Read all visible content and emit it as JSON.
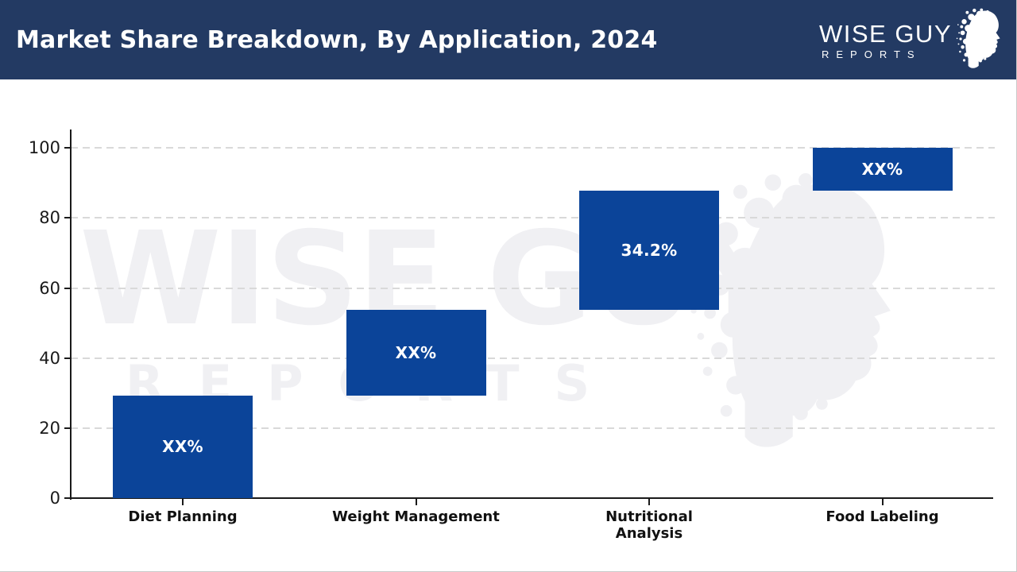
{
  "header": {
    "title": "Market Share Breakdown, By Application, 2024",
    "logo": {
      "line1": "WISE GUY",
      "line2": "REPORTS"
    }
  },
  "watermark": {
    "line1": "WISE GUY",
    "line2": "REPORTS"
  },
  "colors": {
    "header_bg": "#233a63",
    "title_text": "#ffffff",
    "bar": "#0b4499",
    "bar_label": "#ffffff",
    "grid": "#d9d9d9",
    "axis": "#1a1a1a",
    "tick_label": "#1a1a1a",
    "category_label": "#111111",
    "watermark": "#f0f0f3",
    "figure_border": "#c9c9c9"
  },
  "chart_data": {
    "type": "bar",
    "subtype": "waterfall-floating-bars",
    "title": "Market Share Breakdown, By Application, 2024",
    "categories": [
      "Diet Planning",
      "Weight Management",
      "Nutritional Analysis",
      "Food Labeling"
    ],
    "segments": [
      {
        "category": "Diet Planning",
        "lines": [
          "Diet Planning"
        ],
        "start": 0,
        "end": 29.3,
        "label": "XX%"
      },
      {
        "category": "Weight Management",
        "lines": [
          "Weight Management"
        ],
        "start": 29.3,
        "end": 53.7,
        "label": "XX%"
      },
      {
        "category": "Nutritional Analysis",
        "lines": [
          "Nutritional",
          "Analysis"
        ],
        "start": 53.7,
        "end": 87.9,
        "label": "34.2%"
      },
      {
        "category": "Food Labeling",
        "lines": [
          "Food Labeling"
        ],
        "start": 87.9,
        "end": 100,
        "label": "XX%"
      }
    ],
    "xlabel": "",
    "ylabel": "",
    "ylim": [
      0,
      100
    ],
    "yticks": [
      0,
      20,
      40,
      60,
      80,
      100
    ],
    "grid": "horizontal-dashed",
    "legend": "none"
  }
}
